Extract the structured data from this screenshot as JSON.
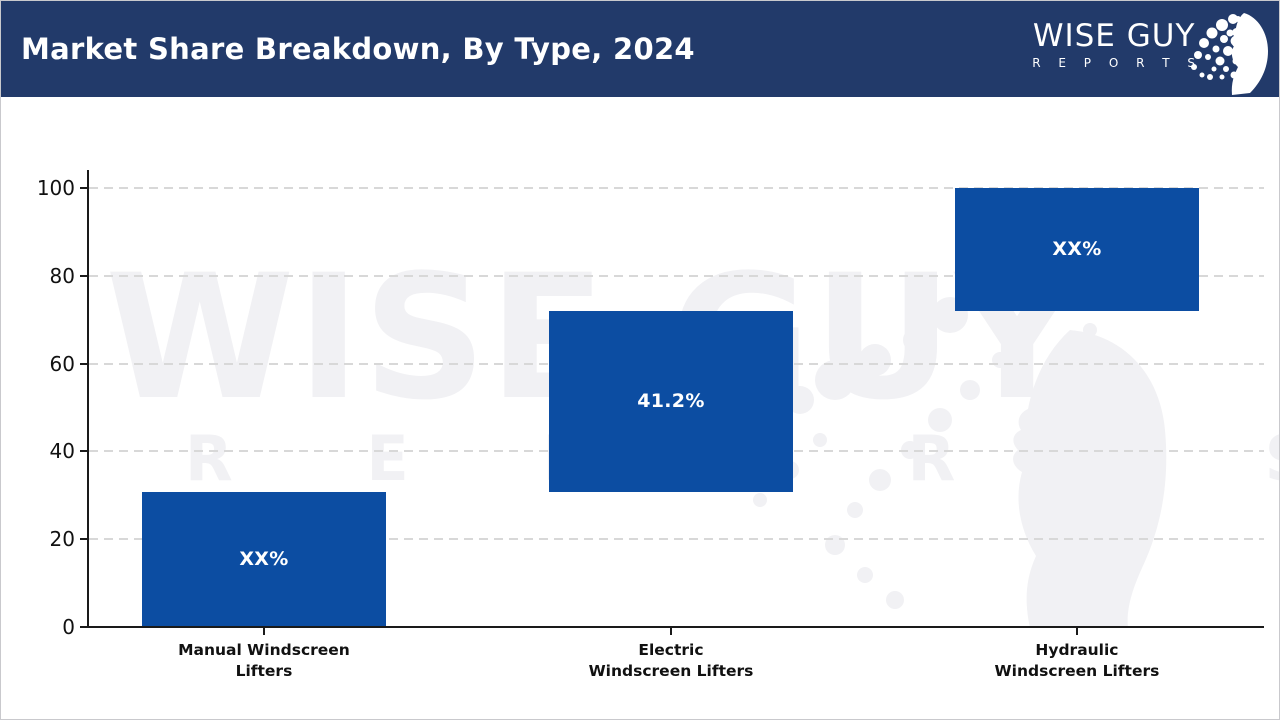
{
  "header": {
    "title": "Market Share Breakdown, By Type, 2024",
    "bg_color": "#223a6a",
    "logo": {
      "line1": "WISE GUY",
      "line2": "R E P O R T S"
    }
  },
  "watermark": {
    "line1": "WISE GUY",
    "line2": "R E P O R T S"
  },
  "chart_data": {
    "type": "bar",
    "subtype": "waterfall",
    "title": "Market Share Breakdown, By Type, 2024",
    "categories": [
      [
        "Manual Windscreen",
        "Lifters"
      ],
      [
        "Electric",
        "Windscreen Lifters"
      ],
      [
        "Hydraulic",
        "Windscreen Lifters"
      ]
    ],
    "segments": [
      {
        "category": "Manual Windscreen Lifters",
        "start": 0,
        "end": 30.8,
        "label": "XX%"
      },
      {
        "category": "Electric Windscreen Lifters",
        "start": 30.8,
        "end": 72.0,
        "label": "41.2%"
      },
      {
        "category": "Hydraulic Windscreen Lifters",
        "start": 72.0,
        "end": 100,
        "label": "XX%"
      }
    ],
    "ylim": [
      0,
      100
    ],
    "yticks": [
      0,
      20,
      40,
      60,
      80,
      100
    ],
    "grid": "horizontal-dashed",
    "legend": "none",
    "bar_color": "#0c4da2",
    "bar_label_color": "#ffffff",
    "grid_color": "#d8d8d8",
    "axis_color": "#1a1a1a",
    "tick_label_color": "#111111"
  }
}
